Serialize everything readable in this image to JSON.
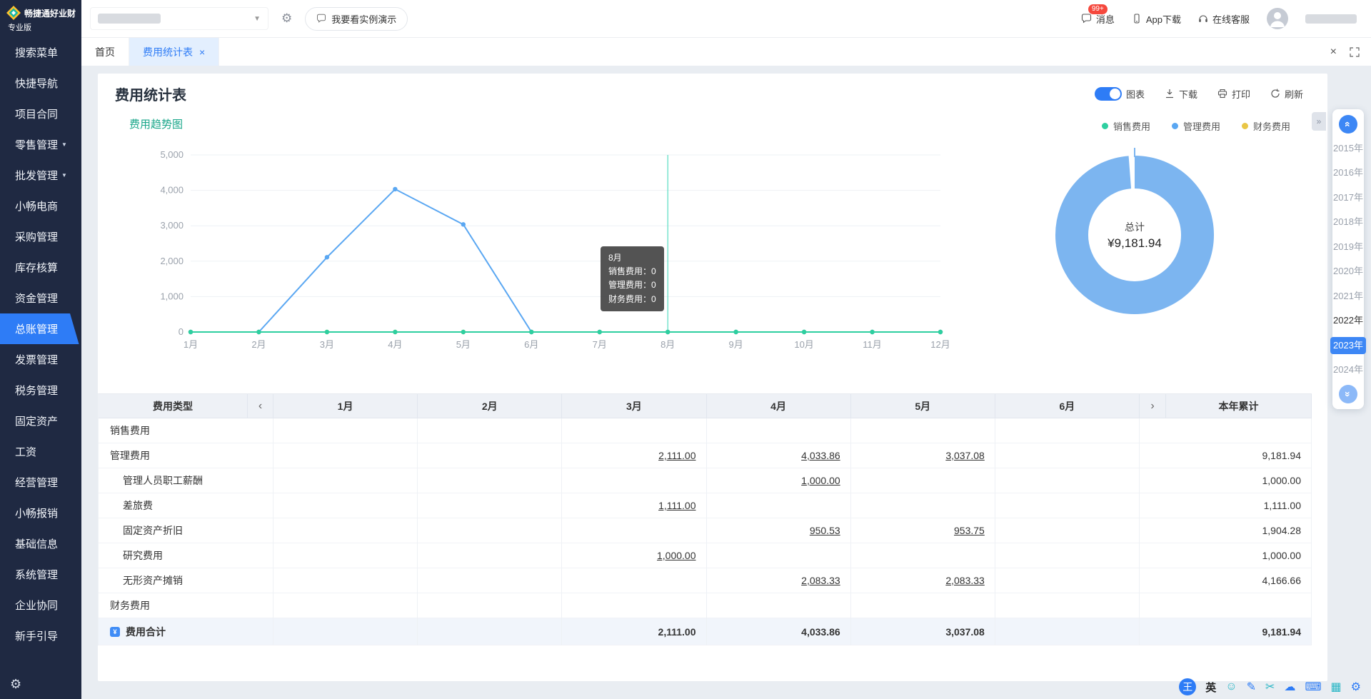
{
  "sidebar": {
    "logo_title": "畅捷通好业财",
    "logo_subtitle": "专业版",
    "items": [
      {
        "label": "搜索菜单"
      },
      {
        "label": "快捷导航"
      },
      {
        "label": "项目合同"
      },
      {
        "label": "零售管理",
        "arrow": true
      },
      {
        "label": "批发管理",
        "arrow": true
      },
      {
        "label": "小畅电商"
      },
      {
        "label": "采购管理"
      },
      {
        "label": "库存核算"
      },
      {
        "label": "资金管理"
      },
      {
        "label": "总账管理",
        "active": true
      },
      {
        "label": "发票管理"
      },
      {
        "label": "税务管理"
      },
      {
        "label": "固定资产"
      },
      {
        "label": "工资"
      },
      {
        "label": "经营管理"
      },
      {
        "label": "小畅报销"
      },
      {
        "label": "基础信息"
      },
      {
        "label": "系统管理"
      },
      {
        "label": "企业协同"
      },
      {
        "label": "新手引导"
      }
    ]
  },
  "topbar": {
    "demo_label": "我要看实例演示",
    "messages_label": "消息",
    "messages_badge": "99+",
    "app_download_label": "App下载",
    "support_label": "在线客服"
  },
  "tabs": [
    {
      "label": "首页"
    },
    {
      "label": "费用统计表",
      "active": true,
      "closable": true
    }
  ],
  "page": {
    "title": "费用统计表",
    "toolbar": {
      "chart_toggle_label": "图表",
      "download_label": "下载",
      "print_label": "打印",
      "refresh_label": "刷新"
    }
  },
  "chart_data": [
    {
      "type": "line",
      "title": "费用趋势图",
      "x": [
        "1月",
        "2月",
        "3月",
        "4月",
        "5月",
        "6月",
        "7月",
        "8月",
        "9月",
        "10月",
        "11月",
        "12月"
      ],
      "ylim": [
        0,
        5000
      ],
      "yticks": [
        0,
        1000,
        2000,
        3000,
        4000,
        5000
      ],
      "grid": true,
      "legend_position": "top-right",
      "series": [
        {
          "name": "销售费用",
          "color": "#2ecfa0",
          "values": [
            0,
            0,
            0,
            0,
            0,
            0,
            0,
            0,
            0,
            0,
            0,
            0
          ]
        },
        {
          "name": "管理费用",
          "color": "#5aa7f2",
          "values": [
            0,
            0,
            2111,
            4033.86,
            3037.08,
            0,
            0,
            0,
            0,
            0,
            0,
            0
          ]
        },
        {
          "name": "财务费用",
          "color": "#e9c646",
          "values": [
            0,
            0,
            0,
            0,
            0,
            0,
            0,
            0,
            0,
            0,
            0,
            0
          ]
        }
      ],
      "tooltip": {
        "x_index": 7,
        "month": "8月",
        "lines": [
          "销售费用：0",
          "管理费用：0",
          "财务费用：0"
        ],
        "crosshair_color": "#35d6b5"
      }
    },
    {
      "type": "donut",
      "center_label": "总计",
      "center_value": "¥9,181.94",
      "slices": [
        {
          "name": "管理费用",
          "value": 9181.94,
          "color": "#7cb5f0"
        }
      ]
    }
  ],
  "year_panel": {
    "years": [
      "2015年",
      "2016年",
      "2017年",
      "2018年",
      "2019年",
      "2020年",
      "2021年",
      "2022年",
      "2023年",
      "2024年"
    ],
    "selected": "2023年",
    "emphasized": "2022年"
  },
  "table": {
    "header": {
      "col_type": "费用类型",
      "months": [
        "1月",
        "2月",
        "3月",
        "4月",
        "5月",
        "6月"
      ],
      "total": "本年累计"
    },
    "rows": [
      {
        "name": "销售费用",
        "indent": false,
        "values": [
          "",
          "",
          "",
          "",
          "",
          ""
        ],
        "links": [],
        "total": ""
      },
      {
        "name": "管理费用",
        "indent": false,
        "values": [
          "",
          "",
          "2,111.00",
          "4,033.86",
          "3,037.08",
          ""
        ],
        "links": [
          2,
          3,
          4
        ],
        "total": "9,181.94"
      },
      {
        "name": "管理人员职工薪酬",
        "indent": true,
        "values": [
          "",
          "",
          "",
          "1,000.00",
          "",
          ""
        ],
        "links": [
          3
        ],
        "total": "1,000.00"
      },
      {
        "name": "差旅费",
        "indent": true,
        "values": [
          "",
          "",
          "1,111.00",
          "",
          "",
          ""
        ],
        "links": [
          2
        ],
        "total": "1,111.00"
      },
      {
        "name": "固定资产折旧",
        "indent": true,
        "values": [
          "",
          "",
          "",
          "950.53",
          "953.75",
          ""
        ],
        "links": [
          3,
          4
        ],
        "total": "1,904.28"
      },
      {
        "name": "研究费用",
        "indent": true,
        "values": [
          "",
          "",
          "1,000.00",
          "",
          "",
          ""
        ],
        "links": [
          2
        ],
        "total": "1,000.00"
      },
      {
        "name": "无形资产摊销",
        "indent": true,
        "values": [
          "",
          "",
          "",
          "2,083.33",
          "2,083.33",
          ""
        ],
        "links": [
          3,
          4
        ],
        "total": "4,166.66"
      },
      {
        "name": "财务费用",
        "indent": false,
        "values": [
          "",
          "",
          "",
          "",
          "",
          ""
        ],
        "links": [],
        "total": ""
      }
    ],
    "footer": {
      "name": "费用合计",
      "values": [
        "",
        "",
        "2,111.00",
        "4,033.86",
        "3,037.08",
        ""
      ],
      "total": "9,181.94"
    }
  },
  "ime_bar": {
    "primary": "王",
    "mode": "英",
    "icons": [
      "smiley",
      "pen",
      "scissors",
      "cloud",
      "keyboard",
      "grid",
      "settings"
    ]
  },
  "theme": {
    "accent": "#2e7cf6",
    "sidebar_bg": "#1f2942",
    "badge_red": "#f5483d",
    "year_selected_bg": "#3d87f5"
  }
}
